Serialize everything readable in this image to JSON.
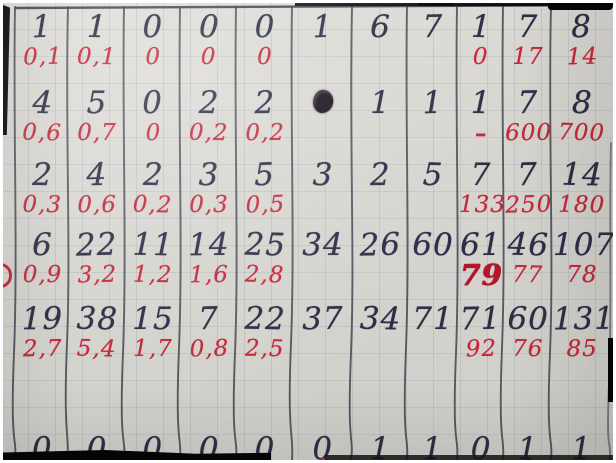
{
  "colors": {
    "paper": "#d6d4cf",
    "ink_blue": "#2c2e46",
    "ink_red": "#c5293a",
    "column_line": "#474a55",
    "grid_line": "#91a0a6",
    "photo_edge": "#050505"
  },
  "table": {
    "type": "handwritten-ledger",
    "columns_count": 11,
    "rows": [
      {
        "cells": [
          {
            "top": "1",
            "bottom": "0,1"
          },
          {
            "top": "1",
            "bottom": "0,1"
          },
          {
            "top": "0",
            "bottom": "0"
          },
          {
            "top": "0",
            "bottom": "0"
          },
          {
            "top": "0",
            "bottom": "0"
          },
          {
            "top": "1",
            "bottom": ""
          },
          {
            "top": "6",
            "bottom": ""
          },
          {
            "top": "7",
            "bottom": ""
          },
          {
            "top": "1",
            "bottom": "0"
          },
          {
            "top": "7",
            "bottom": "17"
          },
          {
            "top": "8",
            "bottom": "14"
          }
        ]
      },
      {
        "cells": [
          {
            "top": "4",
            "bottom": "0,6"
          },
          {
            "top": "5",
            "bottom": "0,7"
          },
          {
            "top": "0",
            "bottom": "0"
          },
          {
            "top": "2",
            "bottom": "0,2"
          },
          {
            "top": "2",
            "bottom": "0,2"
          },
          {
            "top": "0",
            "bottom": "",
            "blot": true
          },
          {
            "top": "1",
            "bottom": ""
          },
          {
            "top": "1",
            "bottom": ""
          },
          {
            "top": "1",
            "bottom": "–",
            "dash": true
          },
          {
            "top": "7",
            "bottom": "600"
          },
          {
            "top": "8",
            "bottom": "700"
          }
        ]
      },
      {
        "cells": [
          {
            "top": "2",
            "bottom": "0,3"
          },
          {
            "top": "4",
            "bottom": "0,6"
          },
          {
            "top": "2",
            "bottom": "0,2"
          },
          {
            "top": "3",
            "bottom": "0,3"
          },
          {
            "top": "5",
            "bottom": "0,5"
          },
          {
            "top": "3",
            "bottom": ""
          },
          {
            "top": "2",
            "bottom": ""
          },
          {
            "top": "5",
            "bottom": ""
          },
          {
            "top": "7",
            "bottom": "133"
          },
          {
            "top": "7",
            "bottom": "250"
          },
          {
            "top": "14",
            "bottom": "180"
          }
        ]
      },
      {
        "cells": [
          {
            "top": "6",
            "bottom": "0,9"
          },
          {
            "top": "22",
            "bottom": "3,2"
          },
          {
            "top": "11",
            "bottom": "1,2"
          },
          {
            "top": "14",
            "bottom": "1,6"
          },
          {
            "top": "25",
            "bottom": "2,8"
          },
          {
            "top": "34",
            "bottom": ""
          },
          {
            "top": "26",
            "bottom": ""
          },
          {
            "top": "60",
            "bottom": ""
          },
          {
            "top": "61",
            "bottom": "79",
            "bold_red": true
          },
          {
            "top": "46",
            "bottom": "77"
          },
          {
            "top": "107",
            "bottom": "78"
          }
        ]
      },
      {
        "cells": [
          {
            "top": "19",
            "bottom": "2,7"
          },
          {
            "top": "38",
            "bottom": "5,4"
          },
          {
            "top": "15",
            "bottom": "1,7"
          },
          {
            "top": "7",
            "bottom": "0,8"
          },
          {
            "top": "22",
            "bottom": "2,5"
          },
          {
            "top": "37",
            "bottom": ""
          },
          {
            "top": "34",
            "bottom": ""
          },
          {
            "top": "71",
            "bottom": ""
          },
          {
            "top": "71",
            "bottom": "92"
          },
          {
            "top": "60",
            "bottom": "76"
          },
          {
            "top": "131",
            "bottom": "85"
          }
        ]
      },
      {
        "cells": [
          {
            "top": "0",
            "bottom": ""
          },
          {
            "top": "0",
            "bottom": ""
          },
          {
            "top": "0",
            "bottom": ""
          },
          {
            "top": "0",
            "bottom": ""
          },
          {
            "top": "0",
            "bottom": "",
            "red_peek": true
          },
          {
            "top": "0",
            "bottom": "",
            "red_peek": true
          },
          {
            "top": "1",
            "bottom": ""
          },
          {
            "top": "1",
            "bottom": ""
          },
          {
            "top": "0",
            "bottom": ""
          },
          {
            "top": "1",
            "bottom": "",
            "red_peek": true
          },
          {
            "top": "1",
            "bottom": "",
            "red_peek": true
          }
        ]
      }
    ]
  }
}
